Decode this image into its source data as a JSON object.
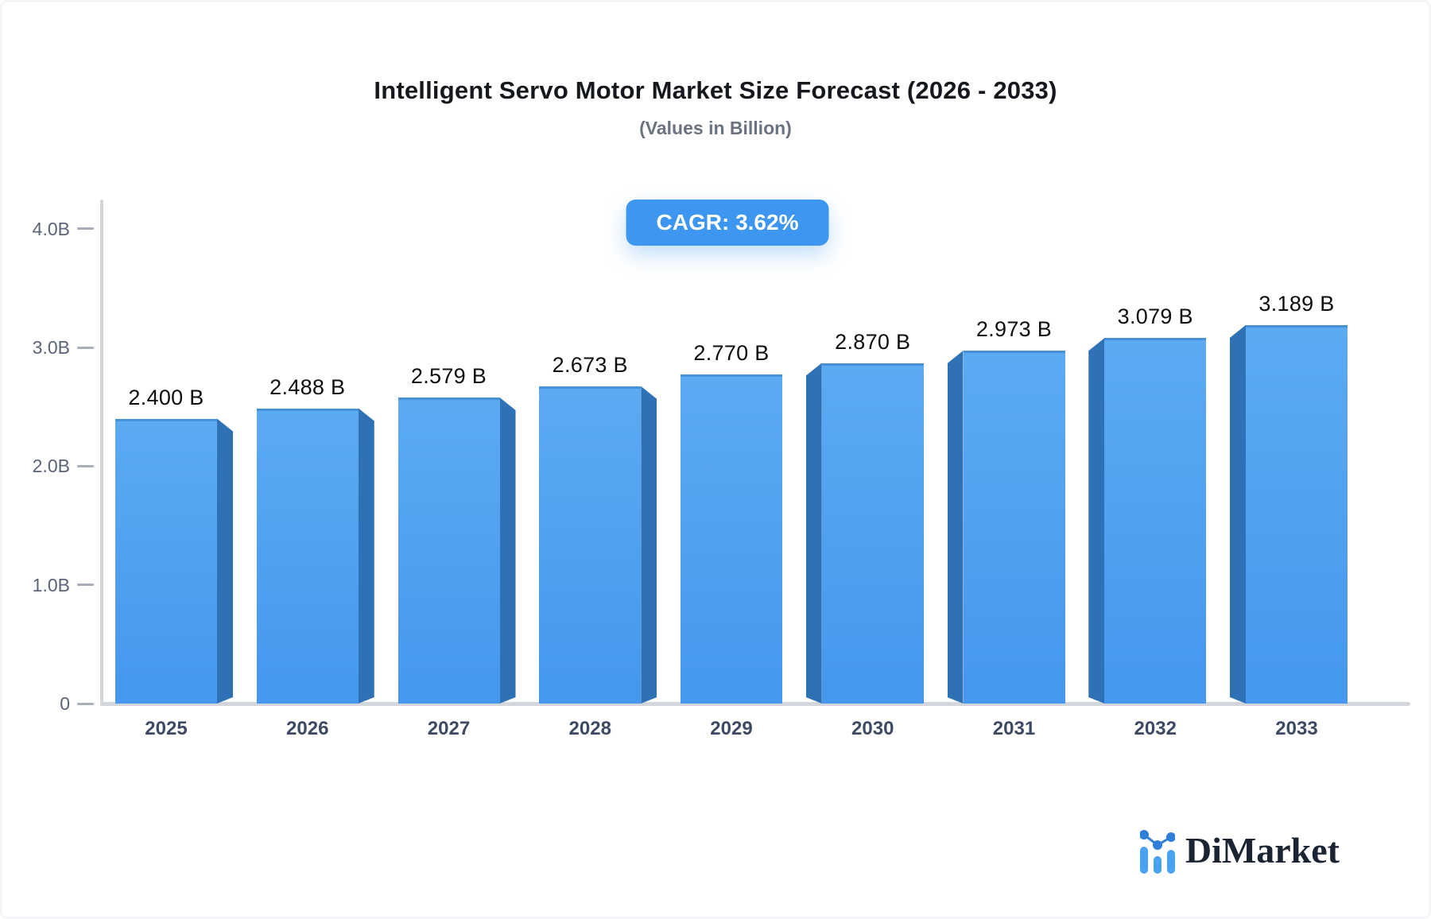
{
  "header": {
    "title": "Intelligent Servo Motor Market Size Forecast (2026 - 2033)",
    "subtitle": "(Values in Billion)"
  },
  "cagr_badge": {
    "label": "CAGR: 3.62%",
    "bg_color": "#3d96ef",
    "text_color": "#ffffff"
  },
  "chart_data": {
    "type": "bar",
    "title": "Intelligent Servo Motor Market Size Forecast (2026 - 2033)",
    "subtitle": "(Values in Billion)",
    "unit": "Billion",
    "cagr": "3.62%",
    "categories": [
      "2025",
      "2026",
      "2027",
      "2028",
      "2029",
      "2030",
      "2031",
      "2032",
      "2033"
    ],
    "values": [
      2.4,
      2.488,
      2.579,
      2.673,
      2.77,
      2.87,
      2.973,
      3.079,
      3.189
    ],
    "value_labels": [
      "2.400 B",
      "2.488 B",
      "2.579 B",
      "2.673 B",
      "2.770 B",
      "2.870 B",
      "2.973 B",
      "3.079 B",
      "3.189 B"
    ],
    "xlabel": "",
    "ylabel": "",
    "ylim": [
      0,
      4.0
    ],
    "grid": false,
    "legend": "none",
    "y_ticks": [
      {
        "label": "4.0B",
        "value": 4.0
      },
      {
        "label": "3.0B",
        "value": 3.0
      },
      {
        "label": "2.0B",
        "value": 2.0
      },
      {
        "label": "1.0B",
        "value": 1.0
      },
      {
        "label": "0",
        "value": 0
      }
    ],
    "colors": {
      "bar_face_top": "#5caaf2",
      "bar_face_bottom": "#4597ef",
      "bar_side": "#2e72b5",
      "axis": "#d3d7dc",
      "tick_dash": "#a8aeb9",
      "tick_label": "#5b6477",
      "category_label": "#3e4a63",
      "value_label": "#0d0f12"
    }
  },
  "footer_logo": {
    "brand": "DiMarket",
    "icon": "dimarket-bars-icon",
    "brand_color": "#1b2433",
    "icon_color": "#4aa3f2",
    "icon_dot_color": "#2e7fd9"
  }
}
